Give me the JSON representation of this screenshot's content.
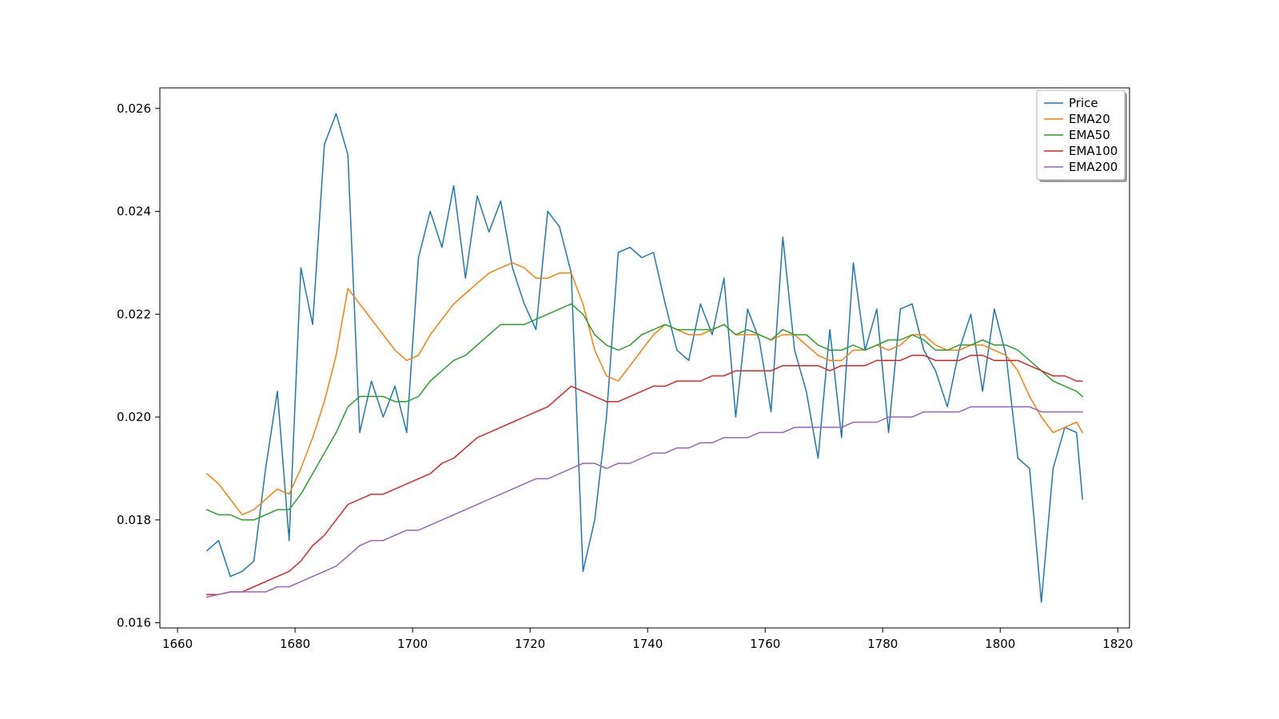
{
  "figure": {
    "background": "#ffffff"
  },
  "chart_data": {
    "type": "line",
    "title": "",
    "xlabel": "",
    "ylabel": "",
    "grid": false,
    "legend_position": "upper right",
    "legend_shadow": true,
    "xlim": [
      1657,
      1822
    ],
    "ylim": [
      0.0159,
      0.0264
    ],
    "xticks": [
      1660,
      1680,
      1700,
      1720,
      1740,
      1760,
      1780,
      1800,
      1820
    ],
    "yticks": [
      0.016,
      0.018,
      0.02,
      0.022,
      0.024,
      0.026
    ],
    "ytick_decimals": 3,
    "x": [
      1665,
      1667,
      1669,
      1671,
      1673,
      1675,
      1677,
      1679,
      1681,
      1683,
      1685,
      1687,
      1689,
      1691,
      1693,
      1695,
      1697,
      1699,
      1701,
      1703,
      1705,
      1707,
      1709,
      1711,
      1713,
      1715,
      1717,
      1719,
      1721,
      1723,
      1725,
      1727,
      1729,
      1731,
      1733,
      1735,
      1737,
      1739,
      1741,
      1743,
      1745,
      1747,
      1749,
      1751,
      1753,
      1755,
      1757,
      1759,
      1761,
      1763,
      1765,
      1767,
      1769,
      1771,
      1773,
      1775,
      1777,
      1779,
      1781,
      1783,
      1785,
      1787,
      1789,
      1791,
      1793,
      1795,
      1797,
      1799,
      1801,
      1803,
      1805,
      1807,
      1809,
      1811,
      1813,
      1814
    ],
    "series": [
      {
        "name": "Price",
        "color": "#1f77b4",
        "values": [
          0.0174,
          0.0176,
          0.0169,
          0.017,
          0.0172,
          0.019,
          0.0205,
          0.0176,
          0.0229,
          0.0218,
          0.0253,
          0.0259,
          0.0251,
          0.0197,
          0.0207,
          0.02,
          0.0206,
          0.0197,
          0.0231,
          0.024,
          0.0233,
          0.0245,
          0.0227,
          0.0243,
          0.0236,
          0.0242,
          0.0229,
          0.0222,
          0.0217,
          0.024,
          0.0237,
          0.0228,
          0.017,
          0.018,
          0.02,
          0.0232,
          0.0233,
          0.0231,
          0.0232,
          0.0222,
          0.0213,
          0.0211,
          0.0222,
          0.0216,
          0.0227,
          0.02,
          0.0221,
          0.0215,
          0.0201,
          0.0235,
          0.0213,
          0.0205,
          0.0192,
          0.0217,
          0.0196,
          0.023,
          0.0213,
          0.0221,
          0.0197,
          0.0221,
          0.0222,
          0.0213,
          0.0209,
          0.0202,
          0.0213,
          0.022,
          0.0205,
          0.0221,
          0.0212,
          0.0192,
          0.019,
          0.0164,
          0.019,
          0.0198,
          0.0197,
          0.0184
        ]
      },
      {
        "name": "EMA20",
        "color": "#ff7f0e",
        "values": [
          0.0189,
          0.0187,
          0.0184,
          0.0181,
          0.0182,
          0.0184,
          0.0186,
          0.0185,
          0.019,
          0.0196,
          0.0203,
          0.0212,
          0.0225,
          0.0222,
          0.0219,
          0.0216,
          0.0213,
          0.0211,
          0.0212,
          0.0216,
          0.0219,
          0.0222,
          0.0224,
          0.0226,
          0.0228,
          0.0229,
          0.023,
          0.0229,
          0.0227,
          0.0227,
          0.0228,
          0.0228,
          0.0222,
          0.0213,
          0.0208,
          0.0207,
          0.021,
          0.0213,
          0.0216,
          0.0218,
          0.0217,
          0.0216,
          0.0216,
          0.0217,
          0.0218,
          0.0216,
          0.0216,
          0.0216,
          0.0215,
          0.0216,
          0.0216,
          0.0214,
          0.0212,
          0.0211,
          0.0211,
          0.0213,
          0.0213,
          0.0214,
          0.0213,
          0.0214,
          0.0216,
          0.0216,
          0.0214,
          0.0213,
          0.0213,
          0.0214,
          0.0214,
          0.0213,
          0.0212,
          0.0209,
          0.0204,
          0.02,
          0.0197,
          0.0198,
          0.0199,
          0.0197
        ]
      },
      {
        "name": "EMA50",
        "color": "#2ca02c",
        "values": [
          0.0182,
          0.0181,
          0.0181,
          0.018,
          0.018,
          0.0181,
          0.0182,
          0.0182,
          0.0185,
          0.0189,
          0.0193,
          0.0197,
          0.0202,
          0.0204,
          0.0204,
          0.0204,
          0.0203,
          0.0203,
          0.0204,
          0.0207,
          0.0209,
          0.0211,
          0.0212,
          0.0214,
          0.0216,
          0.0218,
          0.0218,
          0.0218,
          0.0219,
          0.022,
          0.0221,
          0.0222,
          0.022,
          0.0216,
          0.0214,
          0.0213,
          0.0214,
          0.0216,
          0.0217,
          0.0218,
          0.0217,
          0.0217,
          0.0217,
          0.0217,
          0.0218,
          0.0216,
          0.0217,
          0.0216,
          0.0215,
          0.0217,
          0.0216,
          0.0216,
          0.0214,
          0.0213,
          0.0213,
          0.0214,
          0.0213,
          0.0214,
          0.0215,
          0.0215,
          0.0216,
          0.0215,
          0.0213,
          0.0213,
          0.0214,
          0.0214,
          0.0215,
          0.0214,
          0.0214,
          0.0213,
          0.0211,
          0.0209,
          0.0207,
          0.0206,
          0.0205,
          0.0204
        ]
      },
      {
        "name": "EMA100",
        "color": "#d62728",
        "values": [
          0.01655,
          0.01655,
          0.0166,
          0.0166,
          0.0167,
          0.0168,
          0.0169,
          0.017,
          0.0172,
          0.0175,
          0.0177,
          0.018,
          0.0183,
          0.0184,
          0.0185,
          0.0185,
          0.0186,
          0.0187,
          0.0188,
          0.0189,
          0.0191,
          0.0192,
          0.0194,
          0.0196,
          0.0197,
          0.0198,
          0.0199,
          0.02,
          0.0201,
          0.0202,
          0.0204,
          0.0206,
          0.0205,
          0.0204,
          0.0203,
          0.0203,
          0.0204,
          0.0205,
          0.0206,
          0.0206,
          0.0207,
          0.0207,
          0.0207,
          0.0208,
          0.0208,
          0.0209,
          0.0209,
          0.0209,
          0.0209,
          0.021,
          0.021,
          0.021,
          0.021,
          0.0209,
          0.021,
          0.021,
          0.021,
          0.0211,
          0.0211,
          0.0211,
          0.0212,
          0.0212,
          0.0211,
          0.0211,
          0.0211,
          0.0212,
          0.0212,
          0.0211,
          0.0211,
          0.0211,
          0.021,
          0.0209,
          0.0208,
          0.0208,
          0.0207,
          0.0207
        ]
      },
      {
        "name": "EMA200",
        "color": "#9467bd",
        "values": [
          0.0165,
          0.01655,
          0.0166,
          0.0166,
          0.0166,
          0.0166,
          0.0167,
          0.0167,
          0.0168,
          0.0169,
          0.017,
          0.0171,
          0.0173,
          0.0175,
          0.0176,
          0.0176,
          0.0177,
          0.0178,
          0.0178,
          0.0179,
          0.018,
          0.0181,
          0.0182,
          0.0183,
          0.0184,
          0.0185,
          0.0186,
          0.0187,
          0.0188,
          0.0188,
          0.0189,
          0.019,
          0.0191,
          0.0191,
          0.019,
          0.0191,
          0.0191,
          0.0192,
          0.0193,
          0.0193,
          0.0194,
          0.0194,
          0.0195,
          0.0195,
          0.0196,
          0.0196,
          0.0196,
          0.0197,
          0.0197,
          0.0197,
          0.0198,
          0.0198,
          0.0198,
          0.0198,
          0.0198,
          0.0199,
          0.0199,
          0.0199,
          0.02,
          0.02,
          0.02,
          0.0201,
          0.0201,
          0.0201,
          0.0201,
          0.0202,
          0.0202,
          0.0202,
          0.0202,
          0.0202,
          0.0202,
          0.0201,
          0.0201,
          0.0201,
          0.0201,
          0.0201
        ]
      }
    ]
  }
}
